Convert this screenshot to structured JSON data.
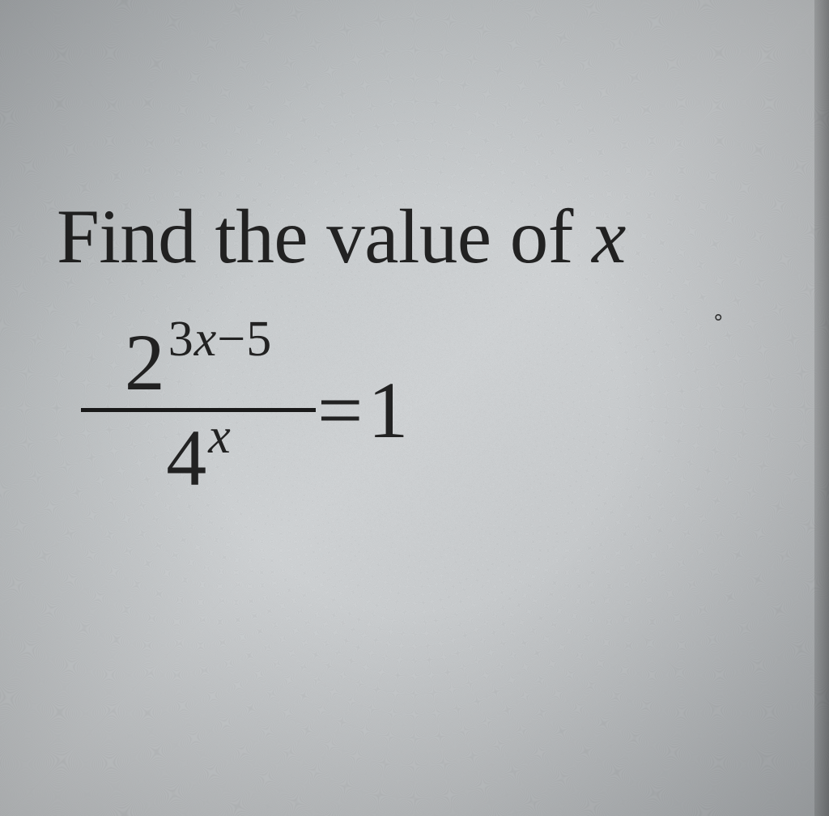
{
  "page": {
    "background_gradient": [
      "#b8bcbf",
      "#c8ccce",
      "#d0d3d5",
      "#c5c8ca",
      "#b5b9bc"
    ],
    "text_color": "#1a1a1a",
    "font_family": "Georgia, Times New Roman, serif"
  },
  "prompt": {
    "text_prefix": "Find the value of ",
    "variable": "x",
    "fontsize": 95
  },
  "equation": {
    "numerator_base": "2",
    "numerator_exp_coef": "3",
    "numerator_exp_var": "x",
    "numerator_exp_const": "−5",
    "denominator_base": "4",
    "denominator_exp": "x",
    "equals": "=",
    "rhs": "1",
    "fontsize": 100,
    "exp_fontsize": 62,
    "fraction_bar_color": "#1a1a1a",
    "fraction_bar_thickness": 5
  }
}
